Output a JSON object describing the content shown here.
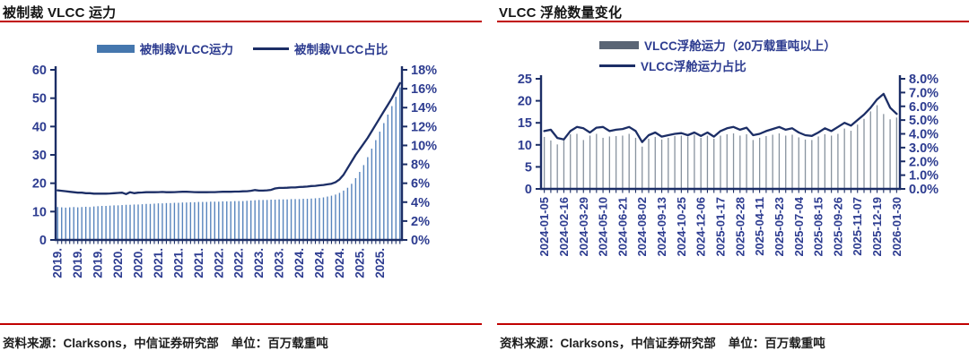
{
  "colors": {
    "navy_line": "#1c2e66",
    "tick_label": "#2d3c90",
    "bar_blue": "#5784bd",
    "bar_blue_legend": "#4577ae",
    "bar_gray": "#87929e",
    "bar_gray_legend": "#5a6575",
    "rule_red": "#c00000",
    "title_text": "#151515",
    "footer_text": "#1d1d1d"
  },
  "panels": [
    {
      "title": "被制裁 VLCC 运力",
      "legend": [
        {
          "label": "被制裁VLCC运力"
        },
        {
          "label": "被制裁VLCC占比"
        }
      ],
      "footer_source": "资料来源：Clarksons，中信证券研究部",
      "footer_unit": "单位：百万载重吨"
    },
    {
      "title": "VLCC 浮舱数量变化",
      "legend": [
        {
          "label": "VLCC浮舱运力（20万载重吨以上）"
        },
        {
          "label": "VLCC浮舱运力占比"
        }
      ],
      "footer_source": "资料来源：Clarksons，中信证券研究部",
      "footer_unit": "单位：百万载重吨"
    }
  ],
  "chart_data": [
    {
      "type": "bar+line",
      "title": "被制裁 VLCC 运力",
      "legend_position": "top",
      "grid": false,
      "x_tick_labels": [
        "2019.",
        "2019.",
        "2019.",
        "2020.",
        "2020.",
        "2021.",
        "2021.",
        "2021.",
        "2022.",
        "2022.",
        "2023.",
        "2023.",
        "2024.",
        "2024.",
        "2024.",
        "2025.",
        "2025."
      ],
      "x_tick_every": 5,
      "y_left": {
        "min": 0,
        "max": 60,
        "step": 10,
        "format": "int"
      },
      "y_right": {
        "min": 0,
        "max": 18,
        "step": 2,
        "format": "pct0"
      },
      "series": [
        {
          "name": "被制裁VLCC运力",
          "type": "bar",
          "axis": "left",
          "color": "#5784bd",
          "values": [
            11.6,
            11.5,
            11.4,
            11.5,
            11.6,
            11.5,
            11.6,
            11.7,
            11.6,
            11.8,
            11.9,
            12.0,
            12.0,
            12.1,
            12.2,
            12.2,
            12.3,
            12.4,
            12.4,
            12.5,
            12.5,
            12.6,
            12.7,
            12.7,
            12.8,
            12.9,
            12.9,
            13.0,
            13.0,
            13.1,
            13.1,
            13.2,
            13.2,
            13.3,
            13.3,
            13.4,
            13.4,
            13.4,
            13.5,
            13.5,
            13.5,
            13.6,
            13.6,
            13.6,
            13.7,
            13.7,
            13.7,
            13.8,
            13.9,
            14.0,
            14.1,
            14.1,
            14.1,
            14.2,
            14.2,
            14.3,
            14.3,
            14.3,
            14.4,
            14.4,
            14.4,
            14.5,
            14.5,
            14.6,
            14.7,
            14.8,
            15.0,
            15.3,
            15.6,
            16.0,
            16.6,
            17.4,
            18.4,
            19.8,
            21.8,
            24.0,
            26.4,
            29.2,
            32.2,
            35.2,
            38.2,
            41.2,
            44.2,
            47.2,
            50.5,
            53.8
          ]
        },
        {
          "name": "被制裁VLCC占比",
          "type": "line",
          "axis": "right",
          "color": "#1c2e66",
          "values": [
            5.25,
            5.2,
            5.15,
            5.1,
            5.05,
            5.0,
            5.0,
            4.95,
            4.95,
            4.9,
            4.9,
            4.9,
            4.9,
            4.92,
            4.95,
            4.97,
            5.0,
            4.85,
            5.05,
            4.95,
            5.0,
            5.02,
            5.05,
            5.05,
            5.05,
            5.06,
            5.08,
            5.05,
            5.05,
            5.06,
            5.08,
            5.1,
            5.1,
            5.08,
            5.06,
            5.05,
            5.05,
            5.05,
            5.06,
            5.06,
            5.08,
            5.1,
            5.1,
            5.1,
            5.12,
            5.12,
            5.14,
            5.15,
            5.2,
            5.28,
            5.22,
            5.22,
            5.25,
            5.3,
            5.45,
            5.5,
            5.5,
            5.52,
            5.55,
            5.55,
            5.6,
            5.62,
            5.65,
            5.7,
            5.72,
            5.78,
            5.82,
            5.88,
            5.95,
            6.1,
            6.4,
            6.9,
            7.6,
            8.3,
            9.0,
            9.6,
            10.2,
            10.8,
            11.5,
            12.2,
            12.9,
            13.6,
            14.3,
            15.0,
            15.8,
            16.6
          ]
        }
      ]
    },
    {
      "type": "bar+line",
      "title": "VLCC 浮舱数量变化",
      "legend_position": "top",
      "grid": false,
      "x_tick_labels": [
        "2024-01-05",
        "2024-02-16",
        "2024-03-29",
        "2024-05-10",
        "2024-06-21",
        "2024-08-02",
        "2024-09-13",
        "2024-10-25",
        "2024-12-06",
        "2025-01-17",
        "2025-02-28",
        "2025-04-11",
        "2025-05-23",
        "2025-07-04",
        "2025-08-15",
        "2025-09-26",
        "2025-11-07",
        "2025-12-19",
        "2026-01-30"
      ],
      "x_tick_every": 3,
      "y_left": {
        "min": 0,
        "max": 25,
        "step": 5,
        "format": "int"
      },
      "y_right": {
        "min": 0,
        "max": 8,
        "step": 1,
        "format": "pct1"
      },
      "series": [
        {
          "name": "VLCC浮舱运力（20万载重吨以上）",
          "type": "bar",
          "axis": "left",
          "color": "#87929e",
          "values": [
            11.8,
            11.0,
            10.1,
            11.2,
            12.4,
            12.5,
            11.1,
            12.1,
            12.5,
            11.6,
            11.9,
            12.0,
            12.1,
            12.5,
            11.6,
            9.6,
            11.4,
            11.8,
            11.2,
            11.6,
            12.0,
            12.1,
            11.9,
            12.3,
            11.6,
            12.1,
            11.4,
            12.1,
            12.4,
            12.6,
            12.1,
            12.4,
            11.1,
            11.6,
            12.0,
            12.3,
            12.6,
            12.1,
            12.3,
            11.7,
            11.2,
            11.1,
            11.9,
            12.4,
            12.1,
            12.5,
            13.7,
            13.2,
            14.6,
            15.9,
            17.6,
            19.0,
            17.0,
            15.8,
            16.2
          ]
        },
        {
          "name": "VLCC浮舱运力占比",
          "type": "line",
          "axis": "right",
          "color": "#1c2e66",
          "values": [
            4.2,
            4.3,
            3.7,
            3.6,
            4.2,
            4.5,
            4.4,
            4.1,
            4.45,
            4.5,
            4.2,
            4.3,
            4.35,
            4.5,
            4.2,
            3.4,
            3.9,
            4.1,
            3.8,
            3.9,
            4.0,
            4.05,
            3.9,
            4.1,
            3.85,
            4.1,
            3.8,
            4.2,
            4.4,
            4.5,
            4.3,
            4.45,
            3.9,
            4.0,
            4.2,
            4.35,
            4.5,
            4.3,
            4.4,
            4.1,
            3.9,
            3.85,
            4.1,
            4.4,
            4.2,
            4.5,
            4.8,
            4.6,
            5.0,
            5.4,
            5.9,
            6.5,
            6.9,
            5.9,
            5.45
          ]
        }
      ]
    }
  ]
}
